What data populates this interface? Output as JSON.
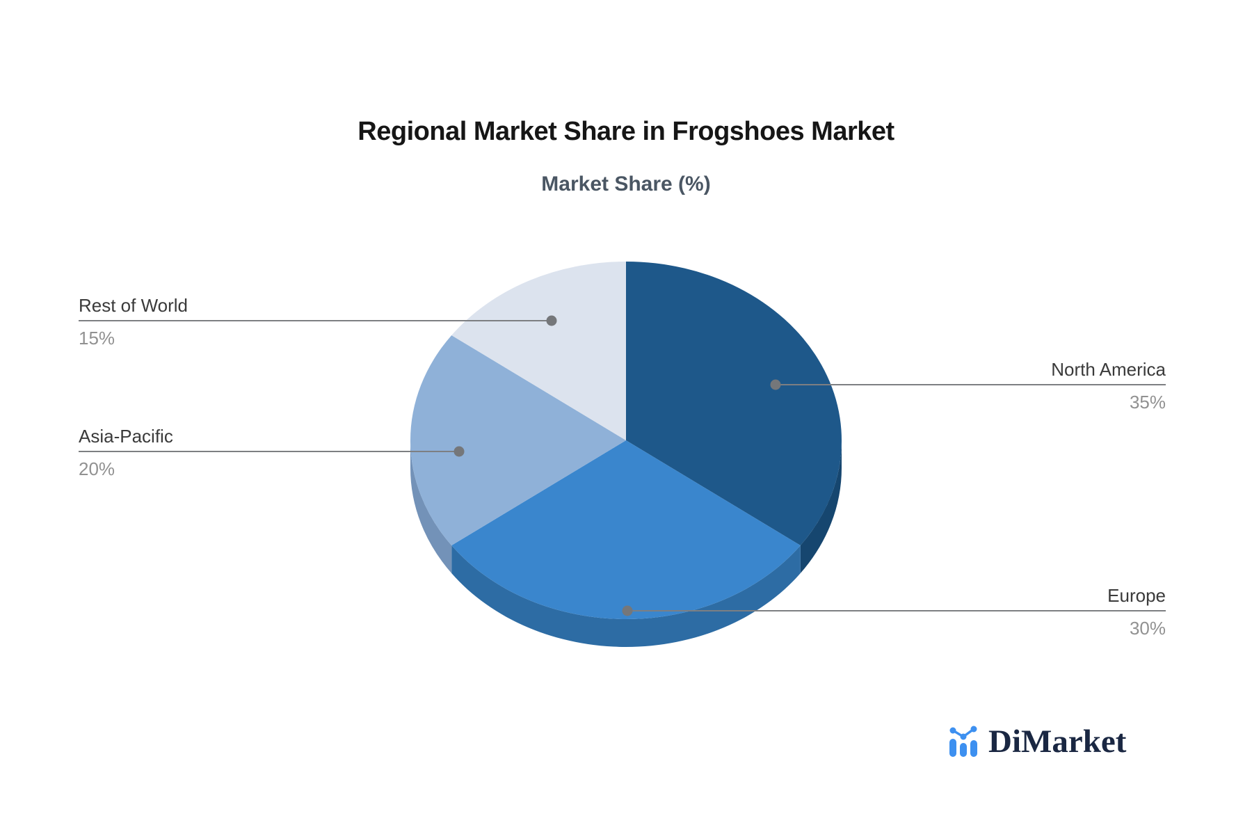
{
  "chart_data": {
    "type": "pie",
    "style": "3d",
    "title": "Regional Market Share in Frogshoes Market",
    "subtitle": "Market Share (%)",
    "unit": "%",
    "start_angle_deg": 90,
    "direction": "clockwise",
    "labels": [
      "North America",
      "Europe",
      "Asia-Pacific",
      "Rest of World"
    ],
    "values": [
      35,
      30,
      20,
      15
    ],
    "value_texts": [
      "35%",
      "30%",
      "20%",
      "15%"
    ],
    "colors": [
      "#1E588A",
      "#3A86CD",
      "#8FB1D8",
      "#DCE3EE"
    ],
    "side_colors": [
      "#16466F",
      "#2D6CA4",
      "#7392B8",
      "#B9C5D8"
    ],
    "label_color": "#3A3A3A",
    "value_color": "#919191",
    "leader_line_color": "#7D7F82",
    "leader_dot_color": "#75777A",
    "legend": "none",
    "background": "#FFFFFF"
  },
  "brand": {
    "name": "DiMarket",
    "icon": "bar-line-chart-icon",
    "icon_color": "#3D90F0",
    "text_color": "#1A2742"
  }
}
